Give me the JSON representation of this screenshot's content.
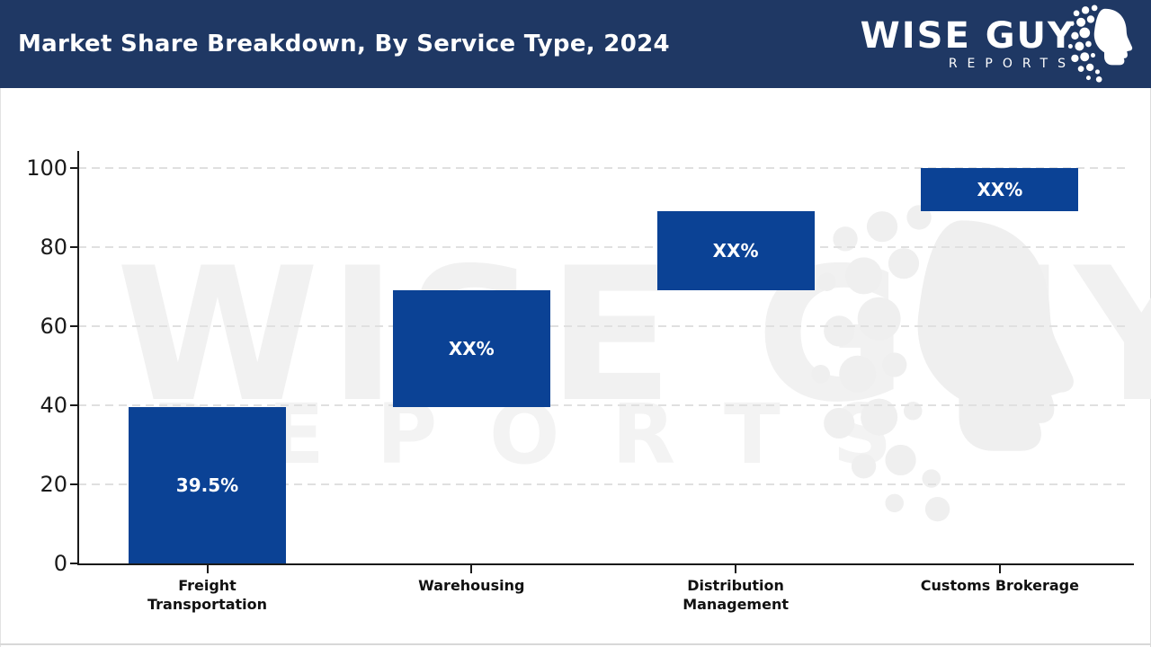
{
  "header": {
    "title": "Market Share Breakdown, By Service Type, 2024",
    "logo": {
      "line1": "WISE GUY",
      "line2": "REPORTS"
    }
  },
  "watermark": {
    "line1": "WISE GUY",
    "line2": "REPORTS"
  },
  "colors": {
    "header_bg": "#1f3864",
    "bar": "#0b4295",
    "bar_label": "#ffffff",
    "grid": "#e0e0e0",
    "axis": "#1a1a1a",
    "watermark": "#f1f1f1"
  },
  "chart_data": {
    "type": "bar",
    "subtype": "waterfall",
    "title": "Market Share Breakdown, By Service Type, 2024",
    "xlabel": "",
    "ylabel": "",
    "ylim": [
      0,
      100
    ],
    "yticks": [
      0,
      20,
      40,
      60,
      80,
      100
    ],
    "grid": "horizontal-dashed",
    "legend": "none",
    "categories": [
      "Freight Transportation",
      "Warehousing",
      "Distribution Management",
      "Customs Brokerage"
    ],
    "category_label_lines": [
      [
        "Freight",
        "Transportation"
      ],
      [
        "Warehousing"
      ],
      [
        "Distribution",
        "Management"
      ],
      [
        "Customs Brokerage"
      ]
    ],
    "segments": [
      {
        "category": "Freight Transportation",
        "start": 0,
        "end": 39.5,
        "label": "39.5%"
      },
      {
        "category": "Warehousing",
        "start": 39.5,
        "end": 69,
        "label": "XX%"
      },
      {
        "category": "Distribution Management",
        "start": 69,
        "end": 89,
        "label": "XX%"
      },
      {
        "category": "Customs Brokerage",
        "start": 89,
        "end": 100,
        "label": "XX%"
      }
    ]
  }
}
